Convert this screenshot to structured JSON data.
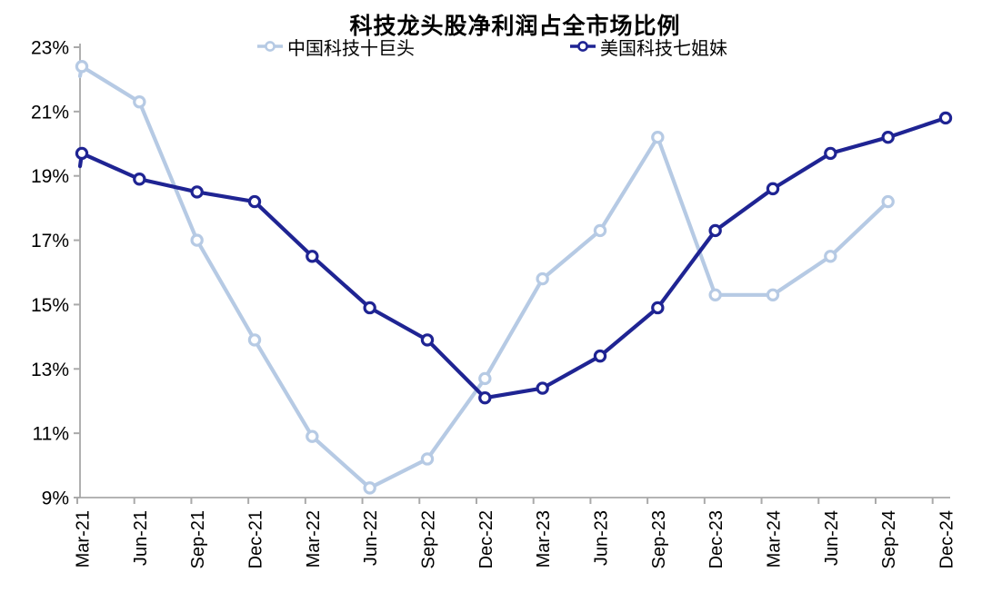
{
  "title": "科技龙头股净利润占全市场比例",
  "chart_data": {
    "type": "line",
    "title": "科技龙头股净利润占全市场比例",
    "categories": [
      "Mar-21",
      "Jun-21",
      "Sep-21",
      "Dec-21",
      "Mar-22",
      "Jun-22",
      "Sep-22",
      "Dec-22",
      "Mar-23",
      "Jun-23",
      "Sep-23",
      "Dec-23",
      "Mar-24",
      "Jun-24",
      "Sep-24",
      "Dec-24"
    ],
    "series": [
      {
        "name": "中国科技十巨头",
        "color": "#B6CAE4",
        "left_edge_value": 22.1,
        "values": [
          22.4,
          21.3,
          17.0,
          13.9,
          10.9,
          9.3,
          10.2,
          12.7,
          15.8,
          17.3,
          20.2,
          15.3,
          15.3,
          16.5,
          18.2,
          null
        ]
      },
      {
        "name": "美国科技七姐妹",
        "color": "#1F2493",
        "left_edge_value": 19.3,
        "values": [
          19.7,
          18.9,
          18.5,
          18.2,
          16.5,
          14.9,
          13.9,
          12.1,
          12.4,
          13.4,
          14.9,
          17.3,
          18.6,
          19.7,
          20.2,
          20.8
        ]
      }
    ],
    "ylim": [
      9,
      23
    ],
    "yticks": [
      9,
      11,
      13,
      15,
      17,
      19,
      21,
      23
    ],
    "ytick_format": "{v}%",
    "xlabel": "",
    "ylabel": "",
    "grid": false,
    "legend_position": "top",
    "marker": "open-circle",
    "axis_color": "#9c9c9c",
    "tick_color": "#aaaaaa",
    "text_color": "#000000",
    "background": "#ffffff"
  }
}
